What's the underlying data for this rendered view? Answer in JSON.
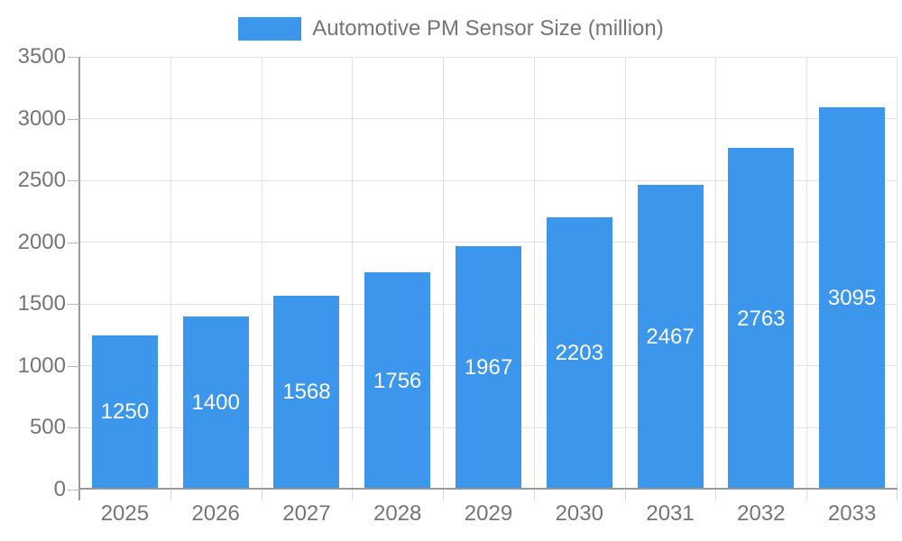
{
  "chart_data": {
    "type": "bar",
    "title": "",
    "legend": "Automotive PM Sensor Size (million)",
    "categories": [
      "2025",
      "2026",
      "2027",
      "2028",
      "2029",
      "2030",
      "2031",
      "2032",
      "2033"
    ],
    "values": [
      1250,
      1400,
      1568,
      1756,
      1967,
      2203,
      2467,
      2763,
      3095
    ],
    "xlabel": "",
    "ylabel": "",
    "ylim": [
      0,
      3500
    ],
    "ytick_step": 500,
    "ytick_labels": [
      "0",
      "500",
      "1000",
      "1500",
      "2000",
      "2500",
      "3000",
      "3500"
    ],
    "grid": true,
    "legend_position": "top",
    "colors": {
      "bar": "#3c96eb",
      "gridline": "#e2e2e2",
      "axis_line": "#999999",
      "tick_label": "#757575",
      "value_label": "#ffffff",
      "background": "#ffffff"
    }
  }
}
